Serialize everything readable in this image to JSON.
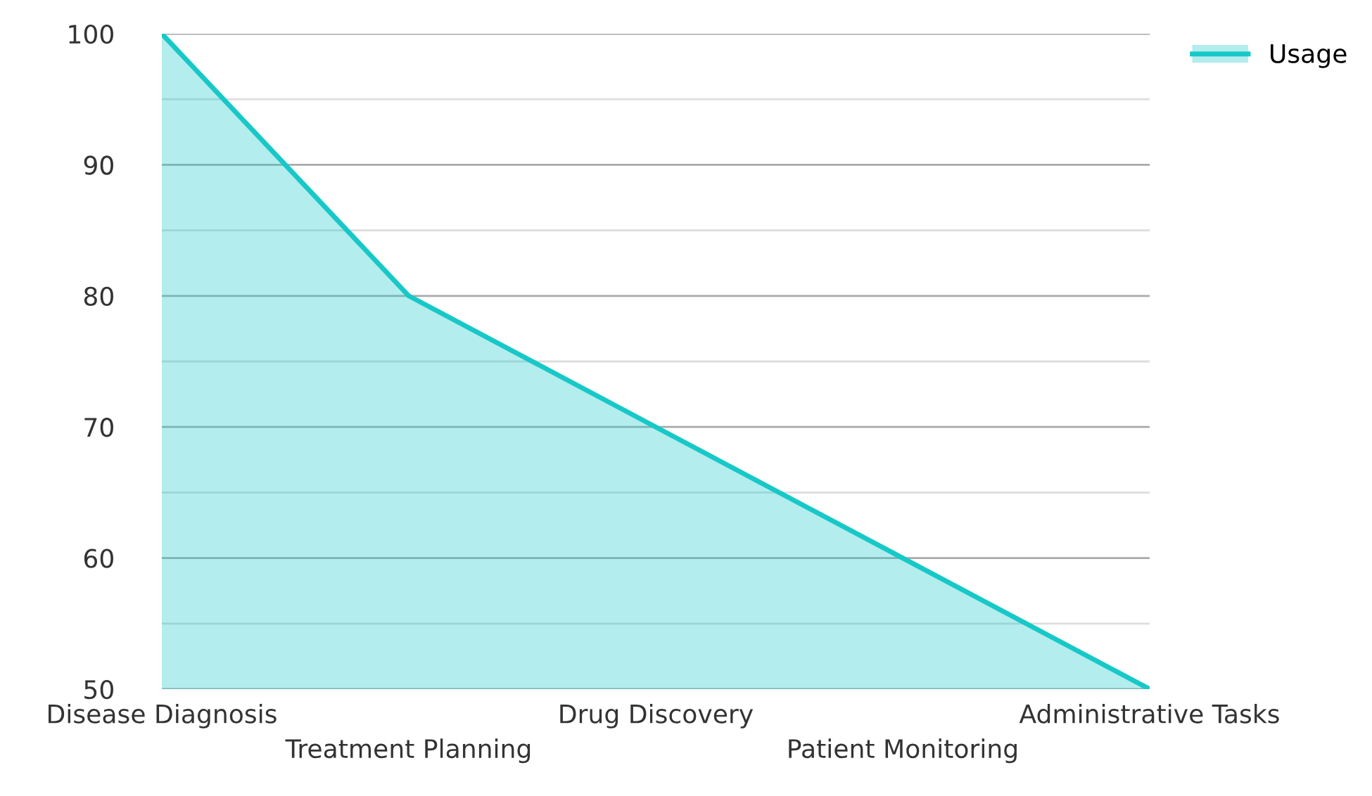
{
  "chart_data": {
    "type": "area",
    "categories": [
      "Disease Diagnosis",
      "Treatment Planning",
      "Drug Discovery",
      "Patient Monitoring",
      "Administrative Tasks"
    ],
    "series": [
      {
        "name": "Usage",
        "color": "#18c8c8",
        "values": [
          100,
          80,
          70,
          60,
          50
        ]
      }
    ],
    "ylim": [
      50,
      100
    ],
    "yticks": [
      50,
      {
        "value": 55,
        "label": null
      },
      60,
      {
        "value": 65,
        "label": null
      },
      70,
      {
        "value": 75,
        "label": null
      },
      80,
      {
        "value": 85,
        "label": null
      },
      90,
      {
        "value": 95,
        "label": null
      },
      100
    ],
    "grid": "y",
    "legend": "top right"
  }
}
